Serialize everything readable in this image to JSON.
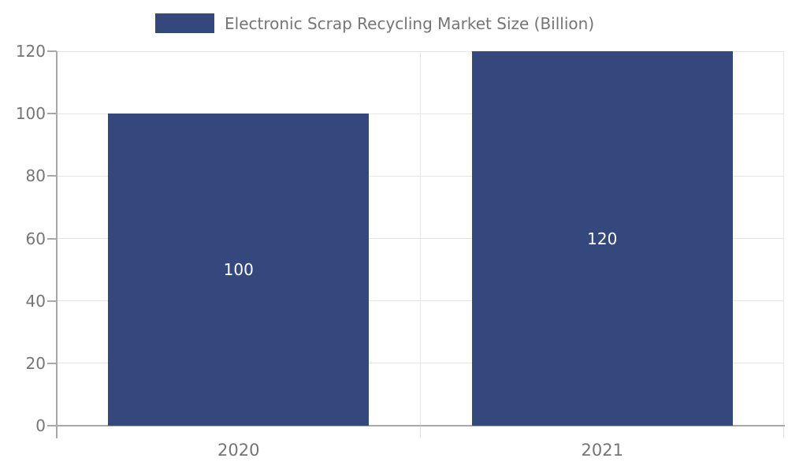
{
  "chart_data": {
    "type": "bar",
    "title": "",
    "categories": [
      "2020",
      "2021"
    ],
    "series": [
      {
        "name": "Electronic Scrap Recycling Market Size (Billion)",
        "values": [
          100,
          120
        ]
      }
    ],
    "value_labels": [
      "100",
      "120"
    ],
    "ylim": [
      0,
      120
    ],
    "yticks": [
      0,
      20,
      40,
      60,
      80,
      100,
      120
    ],
    "grid": true,
    "legend_position": "top",
    "xlabel": "",
    "ylabel": "",
    "colors": {
      "bar": "#35487d",
      "grid": "#e6e6e6",
      "grid_tick": "#e0e0e0",
      "axis": "#a9a9a9",
      "text": "#757575",
      "value_label": "#ffffff",
      "background": "#ffffff"
    }
  }
}
